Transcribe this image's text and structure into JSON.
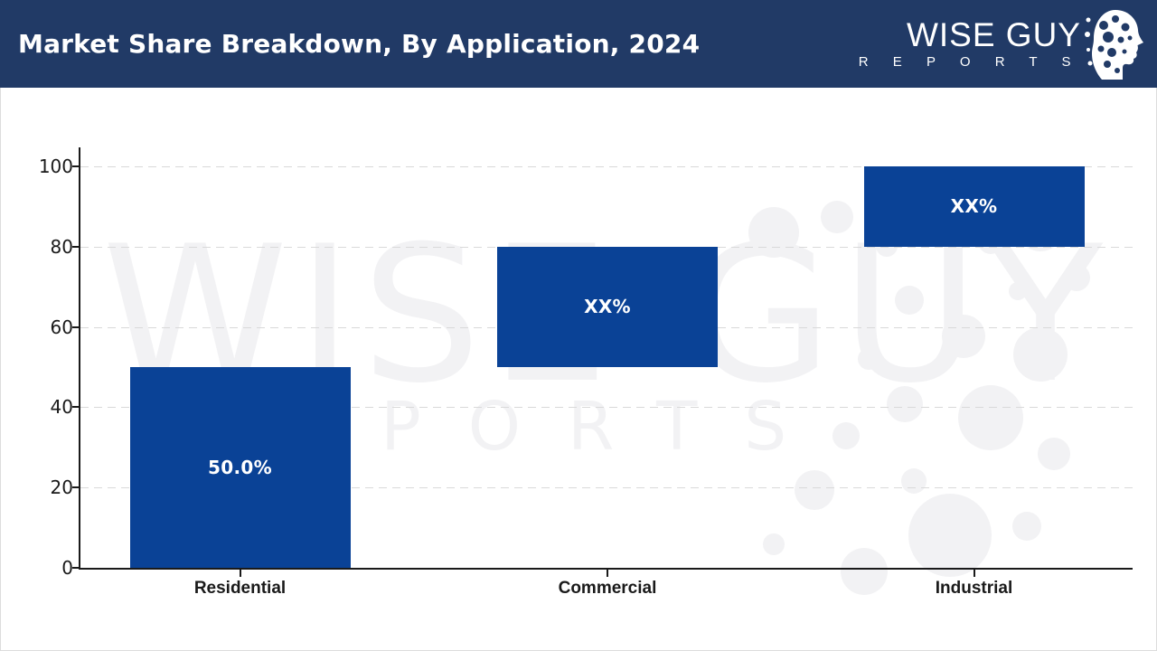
{
  "header": {
    "title": "Market Share Breakdown, By Application, 2024",
    "logo": {
      "line1": "WISE GUY",
      "line2": "R E P O R T S"
    }
  },
  "watermark": {
    "line1": "WISE GUY",
    "line2": "REPORTS"
  },
  "chart_data": {
    "type": "bar",
    "variant": "floating-segments",
    "title": "Market Share Breakdown, By Application, 2024",
    "categories": [
      "Residential",
      "Commercial",
      "Industrial"
    ],
    "segments": [
      {
        "category": "Residential",
        "from": 0,
        "to": 50,
        "label": "50.0%"
      },
      {
        "category": "Commercial",
        "from": 50,
        "to": 80,
        "label": "XX%"
      },
      {
        "category": "Industrial",
        "from": 80,
        "to": 100,
        "label": "XX%"
      }
    ],
    "xlabel": "",
    "ylabel": "",
    "yticks": [
      0,
      20,
      40,
      60,
      80,
      100
    ],
    "ylim": [
      0,
      104.7
    ],
    "grid": "horizontal-dashed",
    "legend": "none",
    "bar_color": "#0a4296",
    "label_color": "#ffffff"
  },
  "colors": {
    "header_bg": "#213a66",
    "page_bg": "#ffffff",
    "axis": "#1a1a1a",
    "grid": "#d9d9d9",
    "watermark": "#f2f2f4",
    "bar": "#0a4296"
  }
}
